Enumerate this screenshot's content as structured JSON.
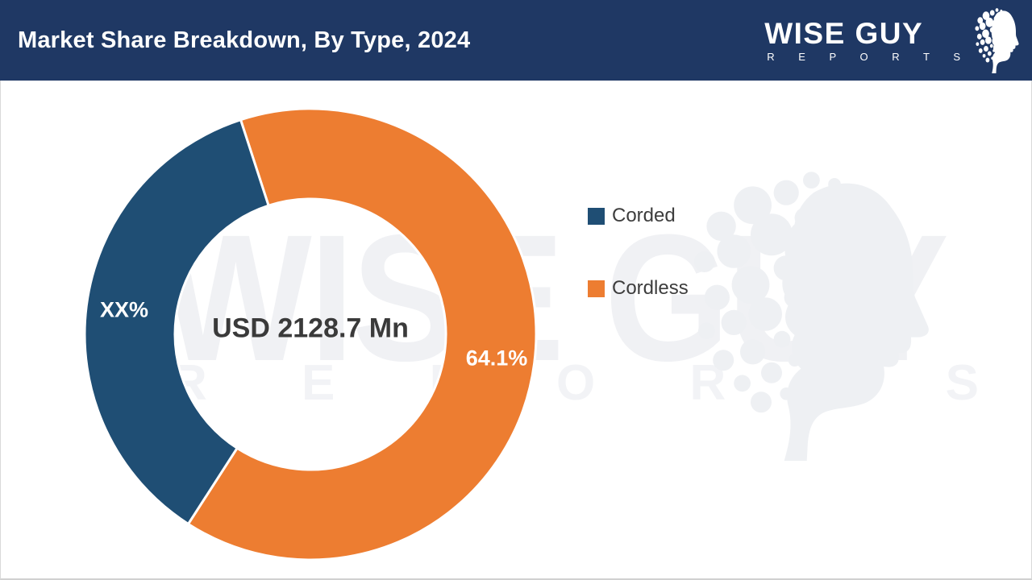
{
  "header": {
    "title": "Market Share Breakdown, By Type, 2024",
    "brand": {
      "name": "WISE GUY",
      "reports_line": "R E P O R T S"
    }
  },
  "watermark": {
    "line1": "WISE GUY",
    "line2": "R E P O R T S"
  },
  "chart_data": {
    "type": "pie",
    "subtype": "donut",
    "title": "Market Share Breakdown, By Type, 2024",
    "center_label": "USD 2128.7 Mn",
    "start_angle_deg": -18,
    "clockwise": true,
    "segments": [
      {
        "name": "Cordless",
        "value_pct": 64.1,
        "shown_label": "64.1%",
        "color": "#ED7D31",
        "masked": false
      },
      {
        "name": "Corded",
        "value_pct": 35.9,
        "shown_label": "XX%",
        "color": "#1F4E74",
        "masked": true
      }
    ],
    "legend_position": "right"
  },
  "legend": {
    "items": [
      {
        "label": "Corded",
        "color": "#1F4E74"
      },
      {
        "label": "Cordless",
        "color": "#ED7D31"
      }
    ]
  },
  "colors": {
    "header_bg": "#1F3864",
    "corded_blue": "#1F4E74",
    "cordless_orange": "#ED7D31",
    "center_text": "#3A3A3A",
    "watermark_gray": "#F0F1F4",
    "frame_border": "#D9D9D9"
  }
}
